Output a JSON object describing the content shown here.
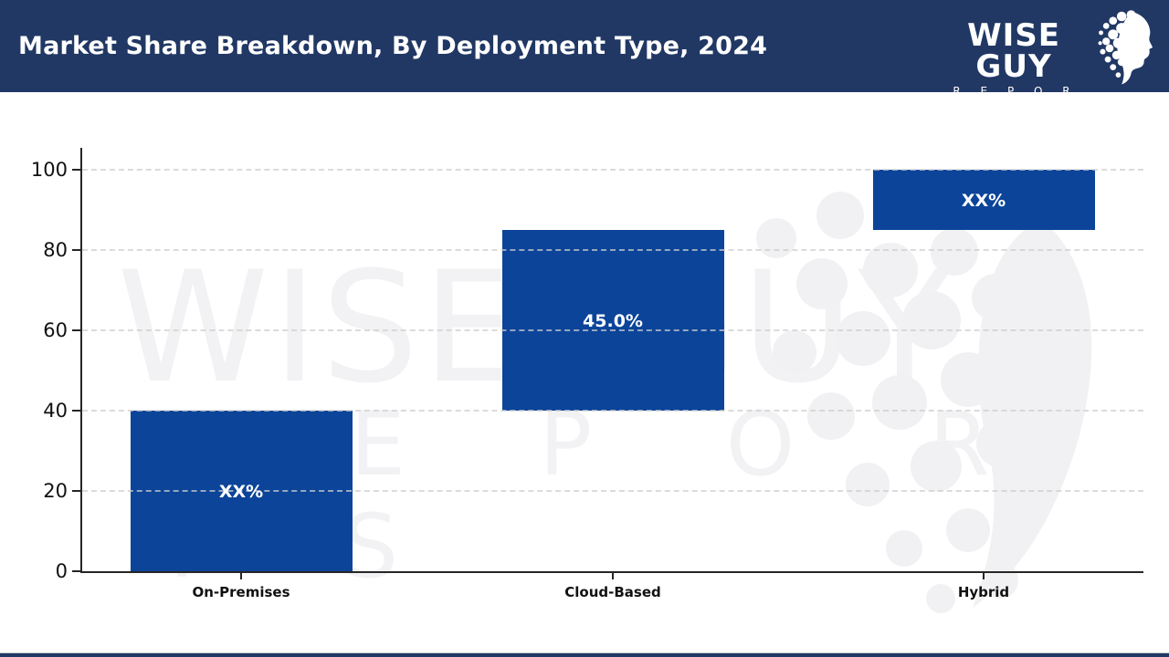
{
  "header": {
    "title": "Market Share Breakdown, By Deployment Type, 2024",
    "logo": {
      "line1": "WISE GUY",
      "line2": "R E P O R T S"
    }
  },
  "watermark": {
    "line1": "WISE GUY",
    "line2": "R E P O R T S"
  },
  "colors": {
    "header_bg": "#213864",
    "footer_bg": "#213864",
    "bar_blue": "#0b4499",
    "axis_color": "#262626",
    "grid_color": "#cdcdcd",
    "watermark_color": "#f2f2f4",
    "label_white": "#ffffff"
  },
  "chart_data": {
    "type": "bar",
    "subtype": "floating-waterfall-columns",
    "title": "Market Share Breakdown, By Deployment Type, 2024",
    "categories": [
      "On-Premises",
      "Cloud-Based",
      "Hybrid"
    ],
    "segments": [
      {
        "category": "On-Premises",
        "start": 0,
        "end": 40,
        "value_label": "XX%"
      },
      {
        "category": "Cloud-Based",
        "start": 40,
        "end": 85,
        "value_label": "45.0%"
      },
      {
        "category": "Hybrid",
        "start": 85,
        "end": 100,
        "value_label": "XX%"
      }
    ],
    "yticks": [
      0,
      20,
      40,
      60,
      80,
      100
    ],
    "ylim": [
      0,
      105
    ],
    "xlabel": "",
    "ylabel": "",
    "grid": "horizontal-dashed-overlaid",
    "legend": "none",
    "bar_color": "#0b4499"
  }
}
